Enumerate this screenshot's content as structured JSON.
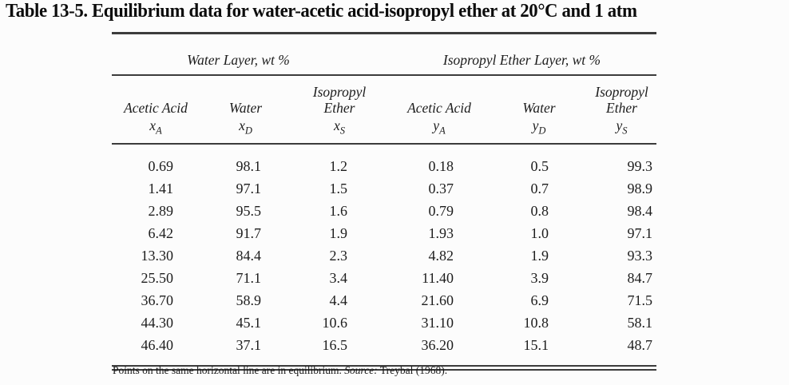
{
  "page": {
    "title": "Table 13-5. Equilibrium data for water-acetic acid-isopropyl ether at 20°C and 1 atm"
  },
  "table": {
    "group_headers": {
      "water_layer": "Water Layer, wt %",
      "ether_layer": "Isopropyl Ether Layer, wt %"
    },
    "columns": [
      {
        "name": "Acetic Acid",
        "symbol": "x",
        "sub": "A"
      },
      {
        "name": "Water",
        "symbol": "x",
        "sub": "D"
      },
      {
        "name": "Isopropyl\nEther",
        "symbol": "x",
        "sub": "S"
      },
      {
        "name": "Acetic Acid",
        "symbol": "y",
        "sub": "A"
      },
      {
        "name": "Water",
        "symbol": "y",
        "sub": "D"
      },
      {
        "name": "Isopropyl\nEther",
        "symbol": "y",
        "sub": "S"
      }
    ],
    "rows": [
      [
        "0.69",
        "98.1",
        "1.2",
        "0.18",
        "0.5",
        "99.3"
      ],
      [
        "1.41",
        "97.1",
        "1.5",
        "0.37",
        "0.7",
        "98.9"
      ],
      [
        "2.89",
        "95.5",
        "1.6",
        "0.79",
        "0.8",
        "98.4"
      ],
      [
        "6.42",
        "91.7",
        "1.9",
        "1.93",
        "1.0",
        "97.1"
      ],
      [
        "13.30",
        "84.4",
        "2.3",
        "4.82",
        "1.9",
        "93.3"
      ],
      [
        "25.50",
        "71.1",
        "3.4",
        "11.40",
        "3.9",
        "84.7"
      ],
      [
        "36.70",
        "58.9",
        "4.4",
        "21.60",
        "6.9",
        "71.5"
      ],
      [
        "44.30",
        "45.1",
        "10.6",
        "31.10",
        "10.8",
        "58.1"
      ],
      [
        "46.40",
        "37.1",
        "16.5",
        "36.20",
        "15.1",
        "48.7"
      ]
    ]
  },
  "footnote": {
    "text": "Points on the same horizontal line are in equilibrium.",
    "source_label": "Source:",
    "source_ref": "Treybal (1968)."
  },
  "colors": {
    "background": "#fcfcfc",
    "text": "#1b1b1b",
    "rule": "#3c3c3c"
  }
}
